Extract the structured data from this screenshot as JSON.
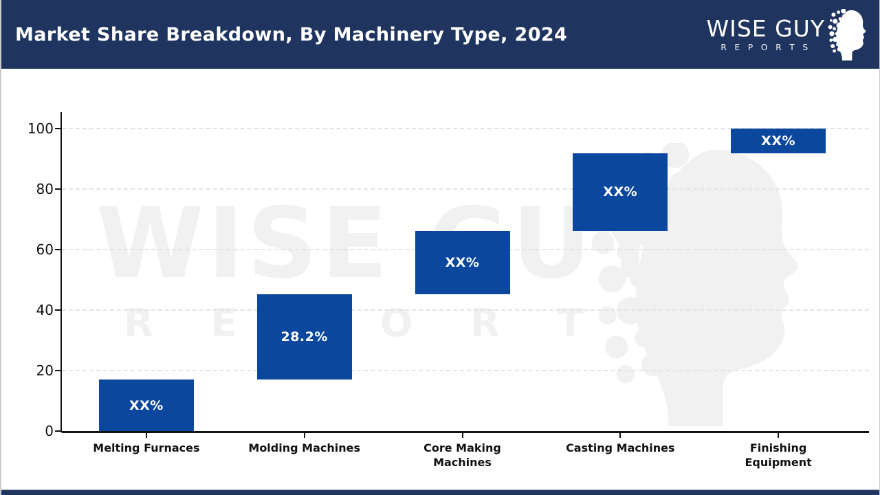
{
  "header": {
    "title": "Market Share Breakdown, By Machinery Type, 2024",
    "logo": {
      "line1": "WISE GUY",
      "line2": "R E P O R T S"
    }
  },
  "watermark": {
    "line1": "WISE GUY",
    "line2": "R E P O R T S"
  },
  "colors": {
    "header_bg": "#1F3560",
    "footer_bg": "#1F3560",
    "bar": "#0B479C",
    "bar_label": "#FFFFFF",
    "axis": "#111111",
    "grid": "#E3E3E3",
    "watermark": "#F1F1F2"
  },
  "chart_data": {
    "type": "bar",
    "subtype": "floating-waterfall",
    "title": "Market Share Breakdown, By Machinery Type, 2024",
    "categories": [
      "Melting Furnaces",
      "Molding Machines",
      "Core Making\nMachines",
      "Casting Machines",
      "Finishing\nEquipment"
    ],
    "segments": [
      {
        "category": "Melting Furnaces",
        "start": 0,
        "end": 17,
        "value": 17,
        "label": "XX%"
      },
      {
        "category": "Molding Machines",
        "start": 17,
        "end": 45.2,
        "value": 28.2,
        "label": "28.2%"
      },
      {
        "category": "Core Making Machines",
        "start": 45.2,
        "end": 66.2,
        "value": 21,
        "label": "XX%"
      },
      {
        "category": "Casting Machines",
        "start": 66.2,
        "end": 91.8,
        "value": 25.6,
        "label": "XX%"
      },
      {
        "category": "Finishing Equipment",
        "start": 91.8,
        "end": 100,
        "value": 8.2,
        "label": "XX%"
      }
    ],
    "yticks": [
      0,
      20,
      40,
      60,
      80,
      100
    ],
    "ylim": [
      0,
      105
    ],
    "xlabel": "",
    "ylabel": "",
    "grid": true,
    "legend": false,
    "bar_color": "#0B479C"
  }
}
